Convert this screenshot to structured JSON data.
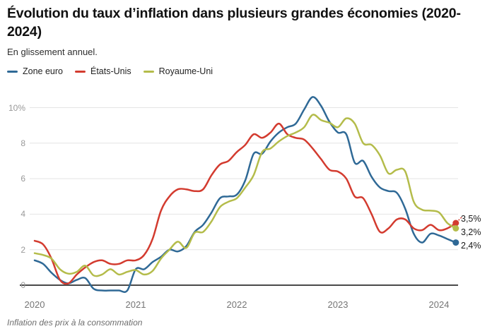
{
  "chart_data": {
    "type": "line",
    "title": "Évolution du taux d’inflation dans plusieurs grandes économies (2020-2024)",
    "subtitle": "En glissement annuel.",
    "footnote": "Inflation des prix à la consommation",
    "x_start": "2020-01",
    "x_end": "2024-03",
    "x_frequency": "monthly",
    "x_ticks": [
      "2020",
      "2021",
      "2022",
      "2023",
      "2024"
    ],
    "y_ticks": [
      "10%",
      "8",
      "6",
      "4",
      "2",
      "0"
    ],
    "y_tick_values": [
      10,
      8,
      6,
      4,
      2,
      0
    ],
    "ylim": [
      -0.6,
      11
    ],
    "grid": true,
    "grid_color": "#e4e4e4",
    "zero_line_color": "#4a4a4a",
    "legend_position": "top-left",
    "draw_order": [
      0,
      1,
      2
    ],
    "series": [
      {
        "name": "Zone euro",
        "color": "#2f6996",
        "end_label": "2,4%",
        "values": [
          1.4,
          1.2,
          0.7,
          0.3,
          0.1,
          0.3,
          0.4,
          -0.2,
          -0.3,
          -0.3,
          -0.3,
          -0.3,
          0.9,
          0.9,
          1.3,
          1.6,
          2.0,
          1.9,
          2.2,
          3.0,
          3.4,
          4.1,
          4.9,
          5.0,
          5.1,
          5.9,
          7.4,
          7.4,
          8.1,
          8.6,
          8.9,
          9.1,
          9.9,
          10.6,
          10.1,
          9.2,
          8.6,
          8.5,
          6.9,
          7.0,
          6.1,
          5.5,
          5.3,
          5.2,
          4.3,
          2.9,
          2.4,
          2.9,
          2.8,
          2.6,
          2.4
        ]
      },
      {
        "name": "États-Unis",
        "color": "#d33b2f",
        "end_label": "3,5%",
        "dashed_tip": true,
        "values": [
          2.5,
          2.3,
          1.5,
          0.3,
          0.1,
          0.6,
          1.0,
          1.3,
          1.4,
          1.2,
          1.2,
          1.4,
          1.4,
          1.7,
          2.6,
          4.2,
          5.0,
          5.4,
          5.4,
          5.3,
          5.4,
          6.2,
          6.8,
          7.0,
          7.5,
          7.9,
          8.5,
          8.3,
          8.6,
          9.1,
          8.5,
          8.3,
          8.2,
          7.7,
          7.1,
          6.5,
          6.4,
          6.0,
          5.0,
          4.9,
          4.0,
          3.0,
          3.2,
          3.7,
          3.7,
          3.2,
          3.1,
          3.4,
          3.1,
          3.2,
          3.5
        ]
      },
      {
        "name": "Royaume-Uni",
        "color": "#b4bc4a",
        "end_label": "3,2%",
        "values": [
          1.8,
          1.7,
          1.5,
          0.9,
          0.65,
          0.75,
          1.1,
          0.55,
          0.6,
          0.9,
          0.6,
          0.75,
          0.85,
          0.6,
          0.8,
          1.5,
          2.0,
          2.45,
          2.1,
          2.95,
          3.0,
          3.6,
          4.4,
          4.7,
          4.9,
          5.5,
          6.2,
          7.5,
          7.7,
          8.1,
          8.4,
          8.6,
          8.9,
          9.6,
          9.3,
          9.15,
          8.9,
          9.4,
          9.1,
          8.0,
          7.9,
          7.3,
          6.3,
          6.5,
          6.4,
          4.7,
          4.25,
          4.2,
          4.1,
          3.5,
          3.2
        ]
      }
    ]
  }
}
